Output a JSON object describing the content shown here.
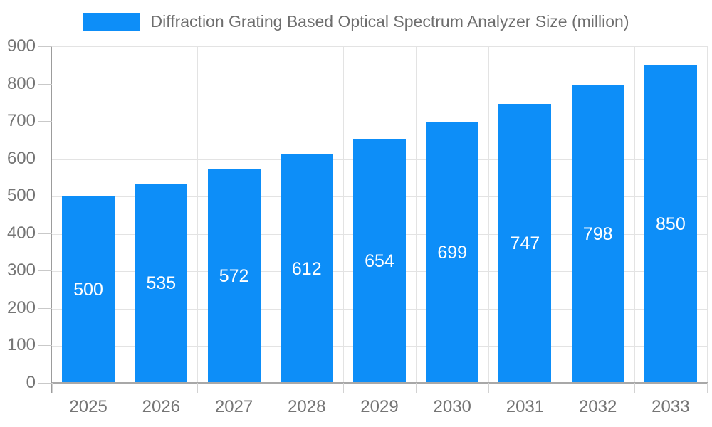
{
  "legend": {
    "label": "Diffraction Grating Based Optical Spectrum Analyzer Size (million)"
  },
  "chart_data": {
    "type": "bar",
    "title": "Diffraction Grating Based Optical Spectrum Analyzer Size (million)",
    "categories": [
      "2025",
      "2026",
      "2027",
      "2028",
      "2029",
      "2030",
      "2031",
      "2032",
      "2033"
    ],
    "values": [
      500,
      535,
      572,
      612,
      654,
      699,
      747,
      798,
      850
    ],
    "series": [
      {
        "name": "Diffraction Grating Based Optical Spectrum Analyzer Size (million)",
        "values": [
          500,
          535,
          572,
          612,
          654,
          699,
          747,
          798,
          850
        ]
      }
    ],
    "xlabel": "",
    "ylabel": "",
    "ylim": [
      0,
      900
    ],
    "yticks": [
      0,
      100,
      200,
      300,
      400,
      500,
      600,
      700,
      800,
      900
    ],
    "grid": true,
    "legend_position": "top",
    "value_labels": "inside-center",
    "colors": {
      "bar": "#0d8ef8",
      "value_label": "#ffffff",
      "axis_text": "#757575",
      "legend_text": "#6e6e6e",
      "grid_line": "#e3e3e3",
      "axis_line": "#9c9c9c",
      "tick_line": "#c9c9c9"
    }
  }
}
